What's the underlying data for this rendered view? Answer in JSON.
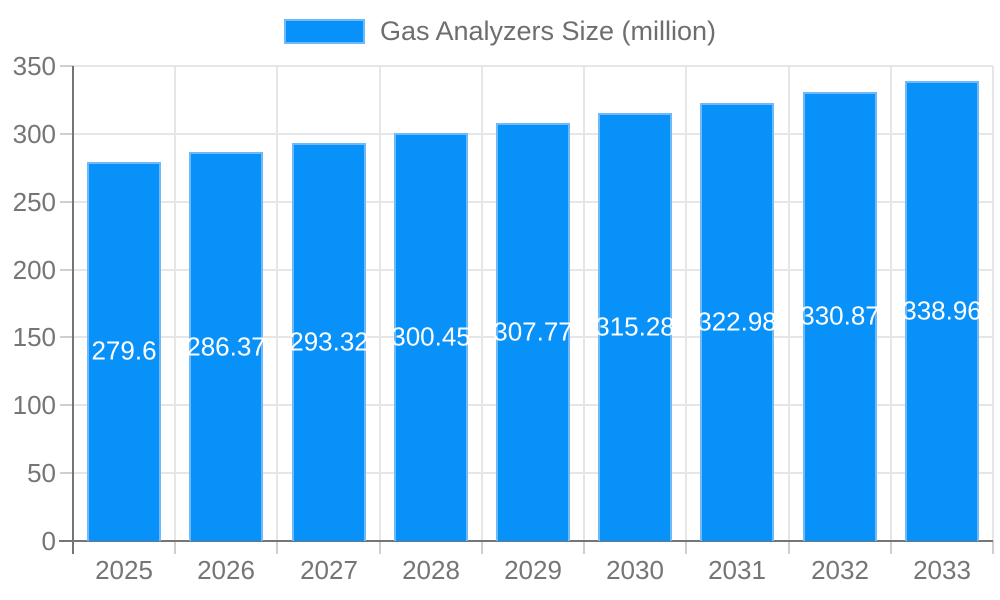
{
  "chart_data": {
    "type": "bar",
    "title": "Gas Analyzers Size (million)",
    "categories": [
      "2025",
      "2026",
      "2027",
      "2028",
      "2029",
      "2030",
      "2031",
      "2032",
      "2033"
    ],
    "values": [
      279.6,
      286.37,
      293.32,
      300.45,
      307.77,
      315.28,
      322.98,
      330.87,
      338.96
    ],
    "value_labels": [
      "279.6",
      "286.37",
      "293.32",
      "300.45",
      "307.77",
      "315.28",
      "322.98",
      "330.87",
      "338.96"
    ],
    "xlabel": "",
    "ylabel": "",
    "ylim": [
      0,
      350
    ],
    "yticks": [
      0,
      50,
      100,
      150,
      200,
      250,
      300,
      350
    ],
    "grid": true,
    "legend_position": "top",
    "value_label_position": "center-of-bar",
    "colors": {
      "bar_fill": "#0991fa",
      "bar_border": "#6db9f9",
      "grid": "#e6e6e6",
      "tick": "#cfcfcf",
      "axis": "#757575",
      "tick_label": "#757575",
      "legend_text": "#6e6e6e",
      "value_label": "#ffffff",
      "background": "#ffffff"
    }
  }
}
